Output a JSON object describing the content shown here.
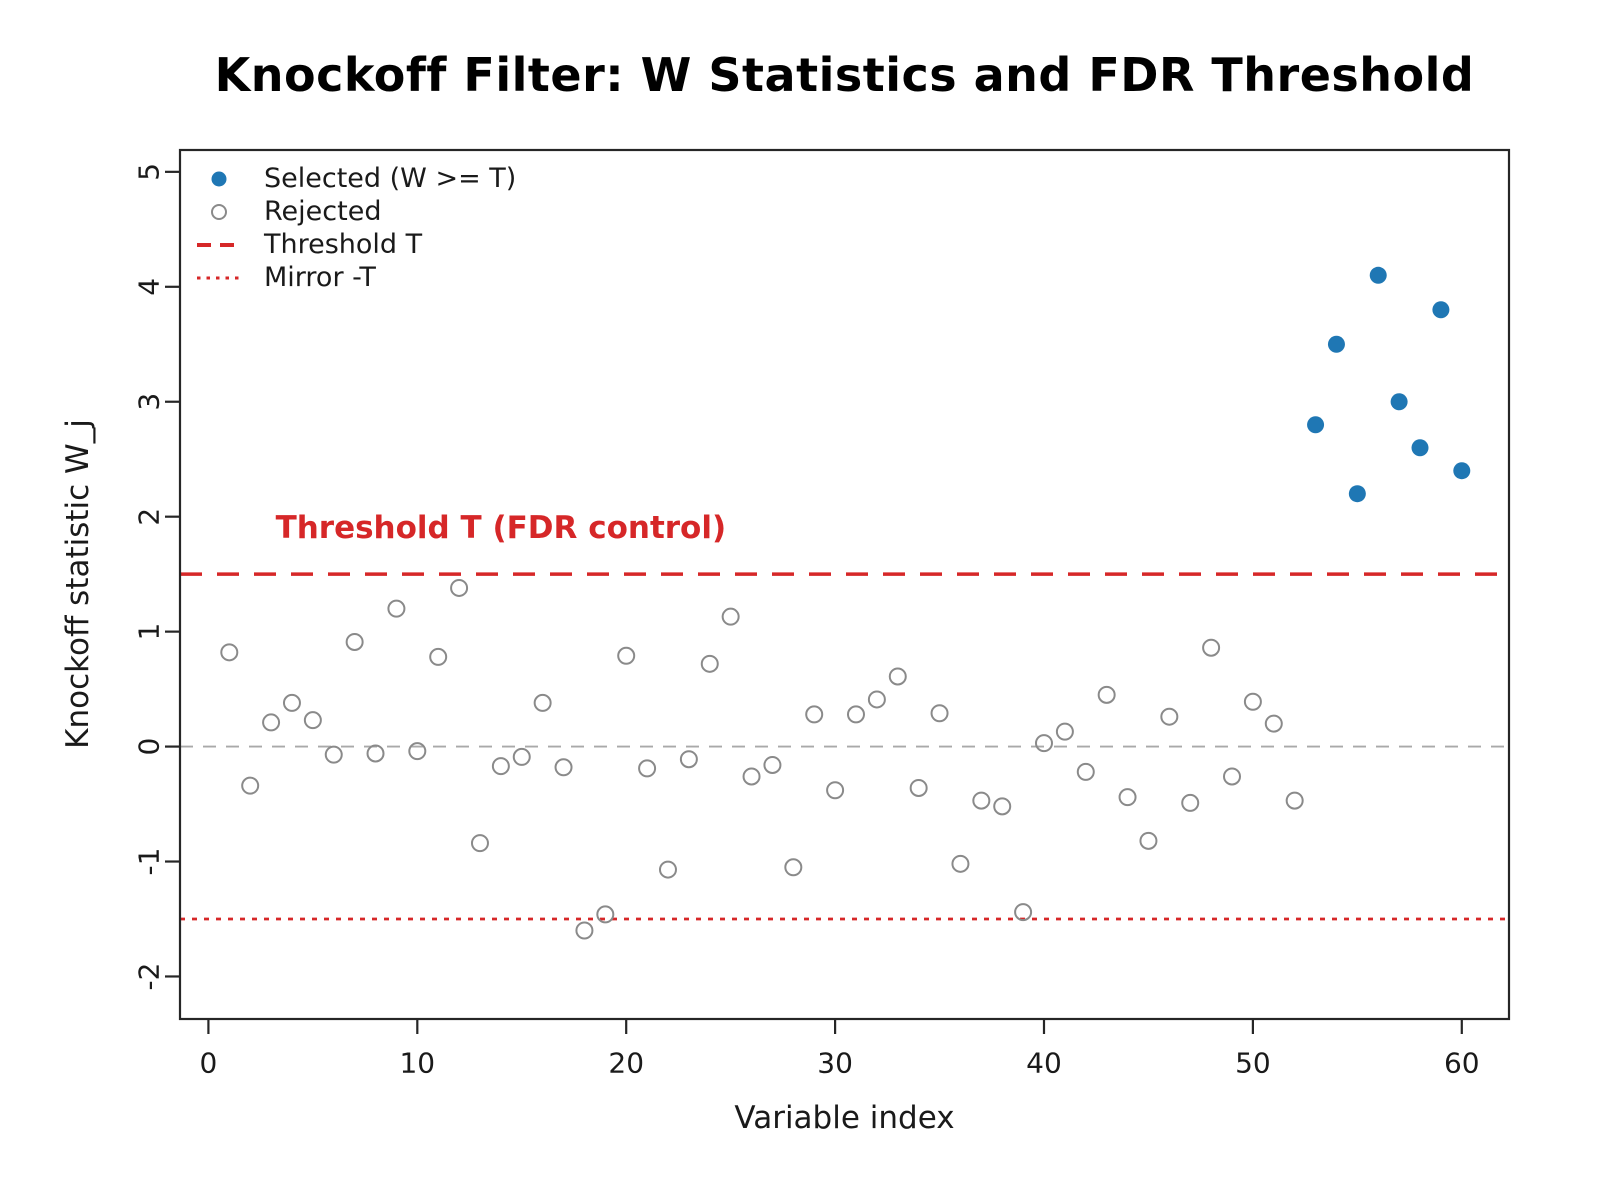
{
  "chart_data": {
    "type": "scatter",
    "title": "Knockoff Filter: W Statistics and FDR Threshold",
    "xlabel": "Variable index",
    "ylabel": "Knockoff statistic W_j",
    "xlim": [
      -1.36,
      62.26
    ],
    "ylim": [
      -2.37,
      5.19
    ],
    "x_ticks": [
      0,
      10,
      20,
      30,
      40,
      50,
      60
    ],
    "y_ticks": [
      -2,
      -1,
      0,
      1,
      2,
      3,
      4,
      5
    ],
    "grid": false,
    "legend_position": "top-left",
    "threshold_T": 1.5,
    "mirror_T": -1.5,
    "zero_line": 0,
    "annotation": {
      "text": "Threshold T (FDR control)",
      "x": 14,
      "y": 1.9
    },
    "series": [
      {
        "name": "Selected (W >= T)",
        "marker": "filled-circle",
        "x": [
          53,
          54,
          55,
          56,
          57,
          58,
          59,
          60
        ],
        "y": [
          2.8,
          3.5,
          2.2,
          4.1,
          3.0,
          2.6,
          3.8,
          2.4
        ]
      },
      {
        "name": "Rejected",
        "marker": "open-circle",
        "x": [
          1,
          2,
          3,
          4,
          5,
          6,
          7,
          8,
          9,
          10,
          11,
          12,
          13,
          14,
          15,
          16,
          17,
          18,
          19,
          20,
          21,
          22,
          23,
          24,
          25,
          26,
          27,
          28,
          29,
          30,
          31,
          32,
          33,
          34,
          35,
          36,
          37,
          38,
          39,
          40,
          41,
          42,
          43,
          44,
          45,
          46,
          47,
          48,
          49,
          50,
          51,
          52
        ],
        "y": [
          0.82,
          -0.34,
          0.21,
          0.38,
          0.23,
          -0.07,
          0.91,
          -0.06,
          1.2,
          -0.04,
          0.78,
          1.38,
          -0.84,
          -0.17,
          -0.09,
          0.38,
          -0.18,
          -1.6,
          -1.46,
          0.79,
          -0.19,
          -1.07,
          -0.11,
          0.72,
          1.13,
          -0.26,
          -0.16,
          -1.05,
          0.28,
          -0.38,
          0.28,
          0.41,
          0.61,
          -0.36,
          0.29,
          -1.02,
          -0.47,
          -0.52,
          -1.44,
          0.03,
          0.13,
          -0.22,
          0.45,
          -0.44,
          -0.82,
          0.26,
          -0.49,
          0.86,
          -0.26,
          0.39,
          0.2,
          -0.47
        ]
      }
    ],
    "legend": [
      {
        "label": "Selected (W >= T)",
        "swatch": "filled-dot",
        "color": "#1f77b4"
      },
      {
        "label": "Rejected",
        "swatch": "open-dot",
        "color": "#8a8a8a"
      },
      {
        "label": "Threshold T",
        "swatch": "dashed-line",
        "color": "#d62728"
      },
      {
        "label": "Mirror -T",
        "swatch": "dotted-line",
        "color": "#d62728"
      }
    ],
    "colors": {
      "selected": "#1f77b4",
      "rejected_stroke": "#8a8a8a",
      "threshold_line": "#d62728",
      "mirror_line": "#d62728",
      "zero_line": "#a9a9a9",
      "frame": "#262626",
      "annotation": "#d62728"
    }
  }
}
